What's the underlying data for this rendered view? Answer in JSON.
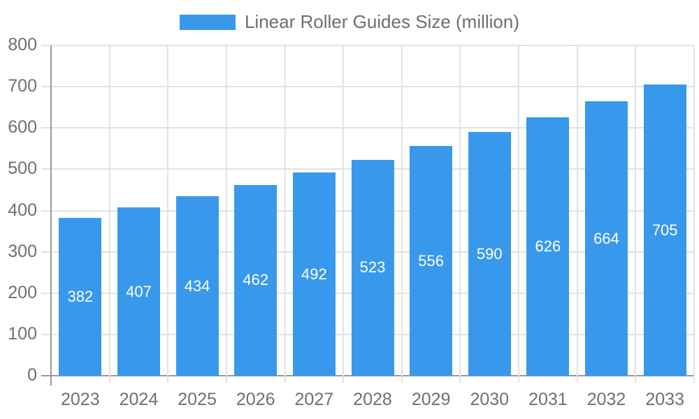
{
  "legend": {
    "label": "Linear Roller Guides Size (million)",
    "swatch_color": "#3899EC"
  },
  "chart_data": {
    "type": "bar",
    "title": "Linear Roller Guides Size (million)",
    "categories": [
      "2023",
      "2024",
      "2025",
      "2026",
      "2027",
      "2028",
      "2029",
      "2030",
      "2031",
      "2032",
      "2033"
    ],
    "values": [
      382,
      407,
      434,
      462,
      492,
      523,
      556,
      590,
      626,
      664,
      705
    ],
    "xlabel": "",
    "ylabel": "",
    "ylim": [
      0,
      800
    ],
    "yticks": [
      0,
      100,
      200,
      300,
      400,
      500,
      600,
      700,
      800
    ],
    "grid": true,
    "legend_position": "top",
    "bar_color": "#3899EC",
    "value_label_color": "#ffffff",
    "axis_line_color": "#9a9a9a",
    "grid_line_color": "#e2e2e2",
    "tick_label_color": "#707070"
  }
}
